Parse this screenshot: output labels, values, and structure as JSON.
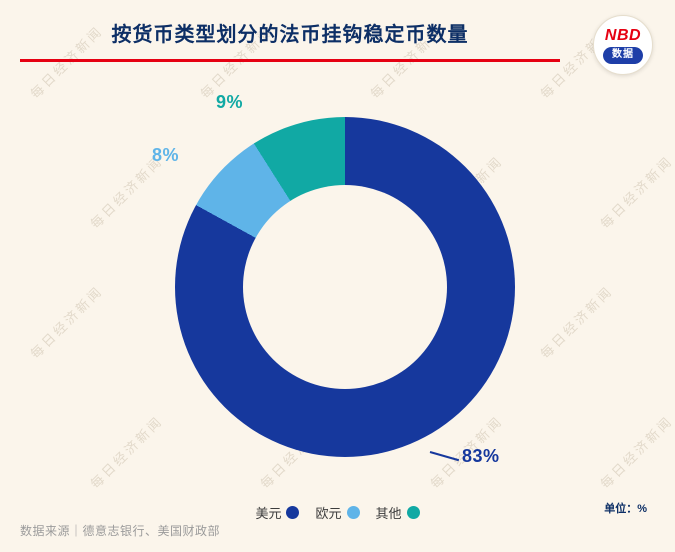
{
  "header": {
    "title": "按货币类型划分的法币挂钩稳定币数量"
  },
  "logo": {
    "line1": "NBD",
    "line2": "数据"
  },
  "watermark": {
    "text": "每日经济新闻"
  },
  "chart_data": {
    "type": "pie",
    "subtype": "donut",
    "title": "按货币类型划分的法币挂钩稳定币数量",
    "unit": "%",
    "start_angle_deg": 0,
    "direction": "clockwise",
    "legend_position": "bottom",
    "inner_radius_ratio": 0.6,
    "series": [
      {
        "name": "美元",
        "value": 83,
        "label": "83%",
        "color": "#16389d"
      },
      {
        "name": "欧元",
        "value": 8,
        "label": "8%",
        "color": "#5fb4e8"
      },
      {
        "name": "其他",
        "value": 9,
        "label": "9%",
        "color": "#11a9a4"
      }
    ]
  },
  "footer": {
    "source": "数据来源｜德意志银行、美国财政部",
    "unit": "单位：%"
  }
}
